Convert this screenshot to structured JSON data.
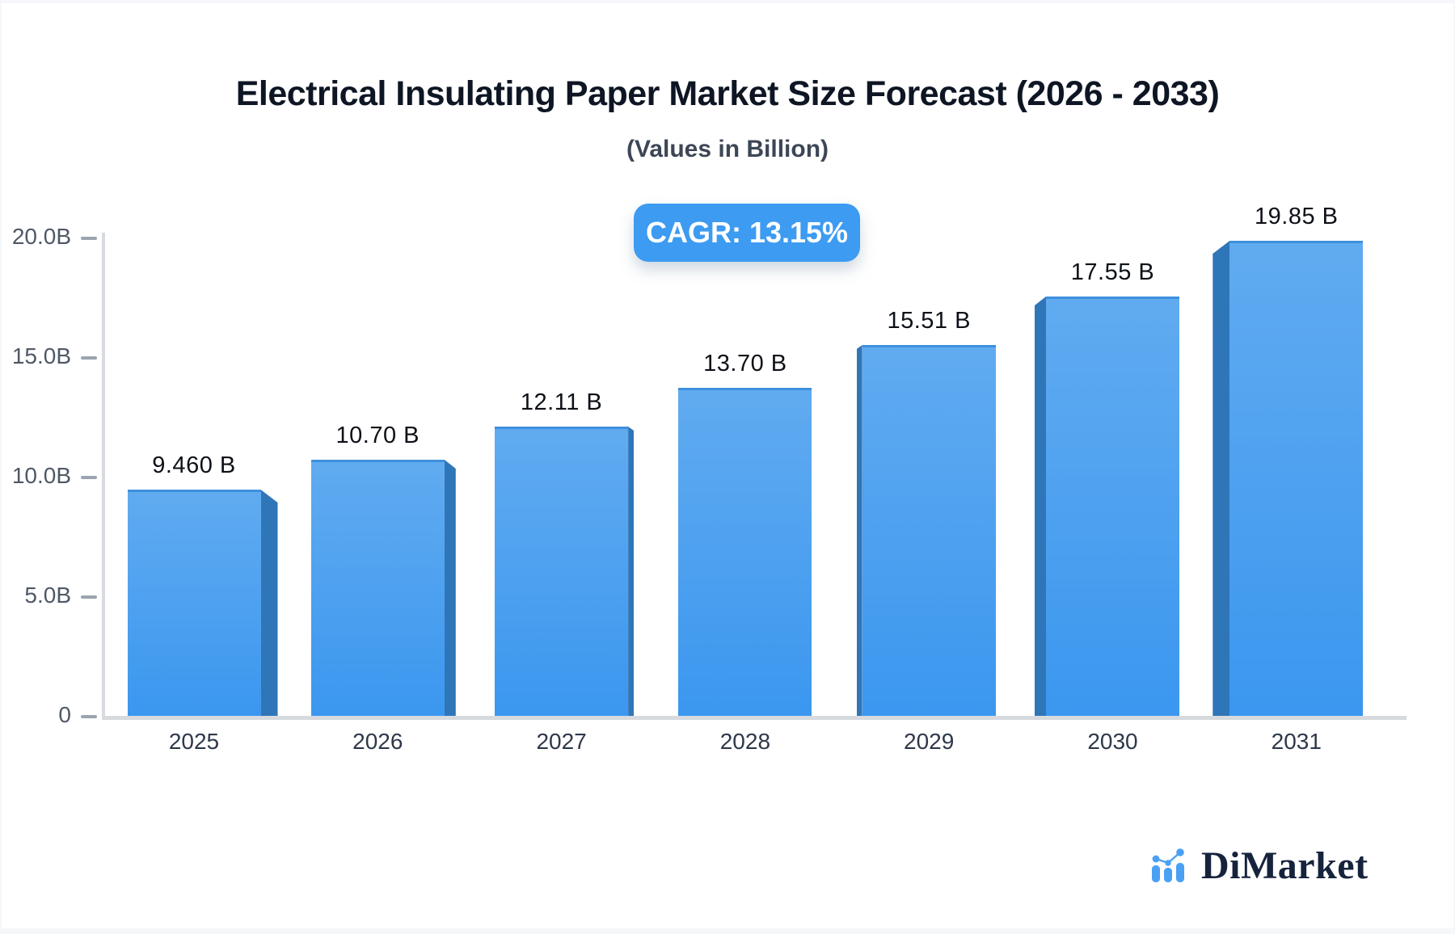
{
  "header": {
    "title": "Electrical Insulating Paper Market Size Forecast (2026 - 2033)",
    "subtitle": "(Values in Billion)",
    "cagr_badge": "CAGR: 13.15%"
  },
  "chart_data": {
    "type": "bar",
    "title": "Electrical Insulating Paper Market Size Forecast (2026 - 2033)",
    "subtitle": "(Values in Billion)",
    "categories": [
      "2025",
      "2026",
      "2027",
      "2028",
      "2029",
      "2030",
      "2031"
    ],
    "values": [
      9.46,
      10.7,
      12.11,
      13.7,
      15.51,
      17.55,
      19.85
    ],
    "bar_labels": [
      "9.460 B",
      "10.70 B",
      "12.11 B",
      "13.70 B",
      "15.51 B",
      "17.55 B",
      "19.85 B"
    ],
    "xlabel": "",
    "ylabel": "",
    "ylim": [
      0,
      20
    ],
    "grid": false,
    "legend": "none",
    "yticks": [
      {
        "value": 20,
        "label": "20.0B"
      },
      {
        "value": 15,
        "label": "15.0B"
      },
      {
        "value": 10,
        "label": "10.0B"
      },
      {
        "value": 5,
        "label": "5.0B"
      },
      {
        "value": 0,
        "label": "0"
      }
    ],
    "cagr": "13.15%",
    "colors": {
      "bar_face_top": "#61abf0",
      "bar_face_bottom": "#3b97ef",
      "bar_side": "#2f76b8",
      "bar_top_edge": "#3e90dd",
      "axis": "#d7dade",
      "tick_dash": "#9ba4b0",
      "ytick_text": "#4f5866",
      "xtick_text": "#2e3849",
      "value_text": "#0d1117",
      "badge_bg": "#3d9bf1"
    }
  },
  "logo": {
    "text": "DiMarket",
    "icon": "bar-chart-trend-icon",
    "icon_color": "#4aa1f3",
    "text_color": "#16233c"
  }
}
